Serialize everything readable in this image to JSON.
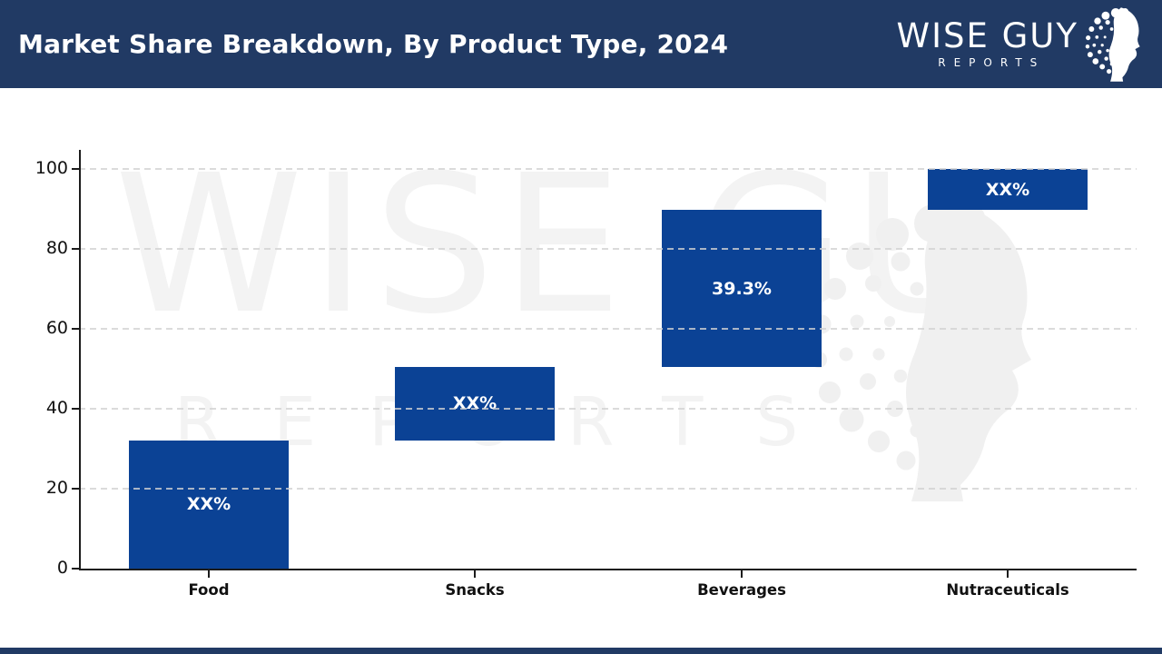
{
  "header": {
    "title": "Market Share Breakdown, By Product Type, 2024",
    "logo": {
      "line1": "WISE GUY",
      "line2": "REPORTS"
    }
  },
  "watermark": {
    "line1": "WISE GU",
    "line2": "REPORTS"
  },
  "colors": {
    "header_bg": "#213a64",
    "footer_bg": "#213a64",
    "bar": "#0b4295",
    "bar_label": "#ffffff",
    "gridline": "#d2d2d2",
    "axis": "#1c1c1c"
  },
  "chart_data": {
    "type": "bar",
    "subtype": "waterfall",
    "title": "Market Share Breakdown, By Product Type, 2024",
    "xlabel": "",
    "ylabel": "",
    "categories": [
      "Food",
      "Snacks",
      "Beverages",
      "Nutraceuticals"
    ],
    "bars": [
      {
        "category": "Food",
        "start": 0,
        "end": 32.1,
        "label": "XX%"
      },
      {
        "category": "Snacks",
        "start": 32.1,
        "end": 50.4,
        "label": "XX%"
      },
      {
        "category": "Beverages",
        "start": 50.4,
        "end": 89.7,
        "label": "39.3%"
      },
      {
        "category": "Nutraceuticals",
        "start": 89.7,
        "end": 100,
        "label": "XX%"
      }
    ],
    "yticks": [
      0,
      20,
      40,
      60,
      80,
      100
    ],
    "ylim": [
      0,
      105
    ],
    "grid": "horizontal-dashed",
    "legend": "none"
  }
}
